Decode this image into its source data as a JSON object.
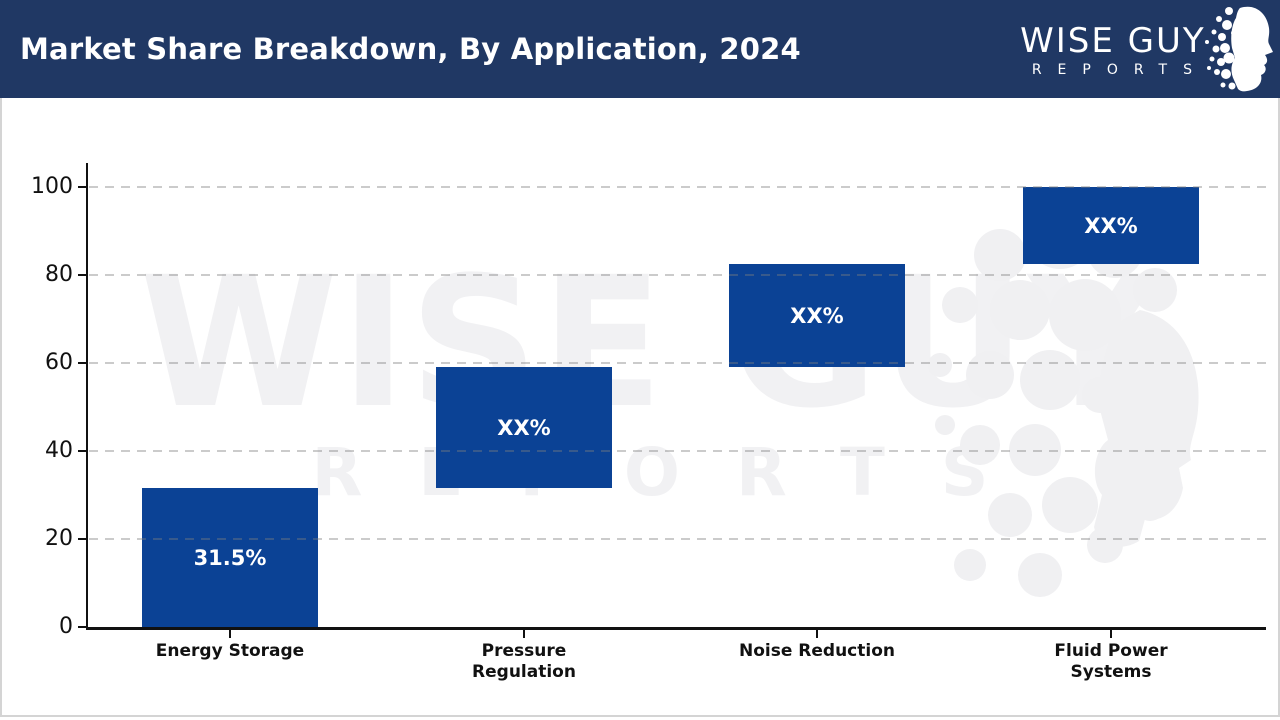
{
  "header": {
    "title": "Market Share Breakdown, By Application, 2024",
    "bg_color": "#203864",
    "logo": {
      "line1": "WISE GUY",
      "line2": "REPORTS"
    }
  },
  "watermark": {
    "line1": "WISE GUY",
    "line2": "REPORTS"
  },
  "chart_data": {
    "type": "bar",
    "subtype": "waterfall",
    "title": "Market Share Breakdown, By Application, 2024",
    "categories": [
      "Energy Storage",
      "Pressure Regulation",
      "Noise Reduction",
      "Fluid Power Systems"
    ],
    "category_label_lines": [
      [
        "Energy Storage"
      ],
      [
        "Pressure",
        "Regulation"
      ],
      [
        "Noise Reduction"
      ],
      [
        "Fluid Power",
        "Systems"
      ]
    ],
    "segments": [
      {
        "category": "Energy Storage",
        "start": 0,
        "end": 31.5,
        "label": "31.5%"
      },
      {
        "category": "Pressure Regulation",
        "start": 31.5,
        "end": 59,
        "label": "XX%"
      },
      {
        "category": "Noise Reduction",
        "start": 59,
        "end": 82.5,
        "label": "XX%"
      },
      {
        "category": "Fluid Power Systems",
        "start": 82.5,
        "end": 100,
        "label": "XX%"
      }
    ],
    "yticks": [
      0,
      20,
      40,
      60,
      80,
      100
    ],
    "ylim": [
      0,
      105
    ],
    "grid": {
      "axis": "y",
      "style": "dashed",
      "color": "#d8d8d8"
    },
    "bar_color": "#0b4295",
    "value_label_color": "#ffffff",
    "axis_color": "#111111",
    "legend": "none",
    "xlabel": "",
    "ylabel": ""
  }
}
